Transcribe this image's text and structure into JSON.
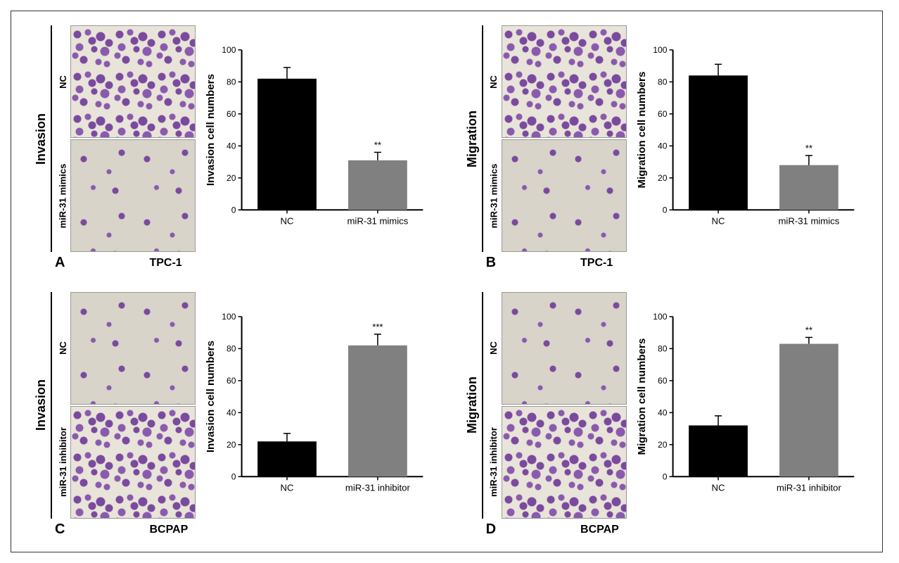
{
  "panels": [
    {
      "letter": "A",
      "side_label": "Invasion",
      "cell_line": "TPC-1",
      "image_top_label": "NC",
      "image_bottom_label": "miR-31 mimics",
      "sparse_is_bottom": true,
      "chart": {
        "type": "bar",
        "y_label": "Invasion cell numbers",
        "y_min": 0,
        "y_max": 100,
        "y_step": 20,
        "categories": [
          "NC",
          "miR-31 mimics"
        ],
        "values": [
          82,
          31
        ],
        "errors": [
          7,
          5
        ],
        "bar_colors": [
          "#000000",
          "#808080"
        ],
        "significance": "**",
        "sig_over_index": 1
      }
    },
    {
      "letter": "B",
      "side_label": "Migration",
      "cell_line": "TPC-1",
      "image_top_label": "NC",
      "image_bottom_label": "miR-31 mimics",
      "sparse_is_bottom": true,
      "chart": {
        "type": "bar",
        "y_label": "Migration cell numbers",
        "y_min": 0,
        "y_max": 100,
        "y_step": 20,
        "categories": [
          "NC",
          "miR-31 mimics"
        ],
        "values": [
          84,
          28
        ],
        "errors": [
          7,
          6
        ],
        "bar_colors": [
          "#000000",
          "#808080"
        ],
        "significance": "**",
        "sig_over_index": 1
      }
    },
    {
      "letter": "C",
      "side_label": "Invasion",
      "cell_line": "BCPAP",
      "image_top_label": "NC",
      "image_bottom_label": "miR-31 inhibitor",
      "sparse_is_bottom": false,
      "chart": {
        "type": "bar",
        "y_label": "Invasion cell numbers",
        "y_min": 0,
        "y_max": 100,
        "y_step": 20,
        "categories": [
          "NC",
          "miR-31 inhibitor"
        ],
        "values": [
          22,
          82
        ],
        "errors": [
          5,
          7
        ],
        "bar_colors": [
          "#000000",
          "#808080"
        ],
        "significance": "***",
        "sig_over_index": 1
      }
    },
    {
      "letter": "D",
      "side_label": "Migration",
      "cell_line": "BCPAP",
      "image_top_label": "NC",
      "image_bottom_label": "miR-31 inhibitor",
      "sparse_is_bottom": false,
      "chart": {
        "type": "bar",
        "y_label": "Migration cell numbers",
        "y_min": 0,
        "y_max": 100,
        "y_step": 20,
        "categories": [
          "NC",
          "miR-31 inhibitor"
        ],
        "values": [
          32,
          83
        ],
        "errors": [
          6,
          4
        ],
        "bar_colors": [
          "#000000",
          "#808080"
        ],
        "significance": "**",
        "sig_over_index": 1
      }
    }
  ],
  "axis_color": "#000000",
  "error_cap_width": 10
}
